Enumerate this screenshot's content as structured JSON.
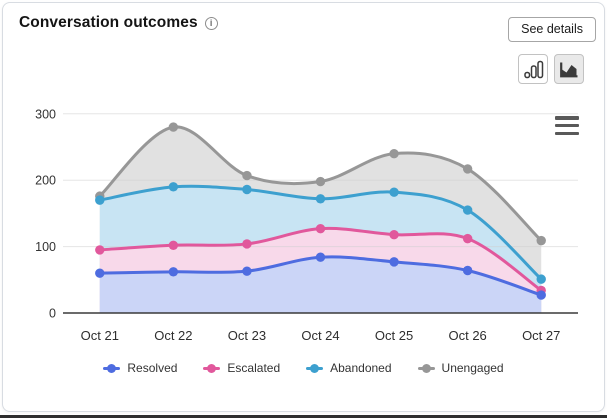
{
  "header": {
    "title": "Conversation outcomes",
    "info_icon": "i",
    "see_details_label": "See details"
  },
  "toolbar": {
    "selected_chart_type": "area"
  },
  "chart_data": {
    "type": "area",
    "title": "Conversation outcomes",
    "categories": [
      "Oct 21",
      "Oct 22",
      "Oct 23",
      "Oct 24",
      "Oct 25",
      "Oct 26",
      "Oct 27"
    ],
    "series": [
      {
        "name": "Resolved",
        "color": "#4e6ce0",
        "fill": "#cbd5f7",
        "values": [
          60,
          62,
          63,
          84,
          77,
          64,
          27
        ]
      },
      {
        "name": "Escalated",
        "color": "#e1589c",
        "fill": "#f8d9ea",
        "values": [
          95,
          102,
          104,
          127,
          118,
          112,
          34
        ]
      },
      {
        "name": "Abandoned",
        "color": "#3da0cf",
        "fill": "#c8e4f3",
        "values": [
          170,
          190,
          186,
          172,
          182,
          155,
          51
        ]
      },
      {
        "name": "Unengaged",
        "color": "#979797",
        "fill": "#e1e1e1",
        "values": [
          176,
          280,
          207,
          198,
          240,
          217,
          109
        ]
      }
    ],
    "draw_order": [
      3,
      2,
      1,
      0
    ],
    "xlabel": "",
    "ylabel": "",
    "ylim": [
      0,
      300
    ],
    "yticks": [
      0,
      100,
      200,
      300
    ],
    "grid": true,
    "legend_position": "bottom"
  }
}
